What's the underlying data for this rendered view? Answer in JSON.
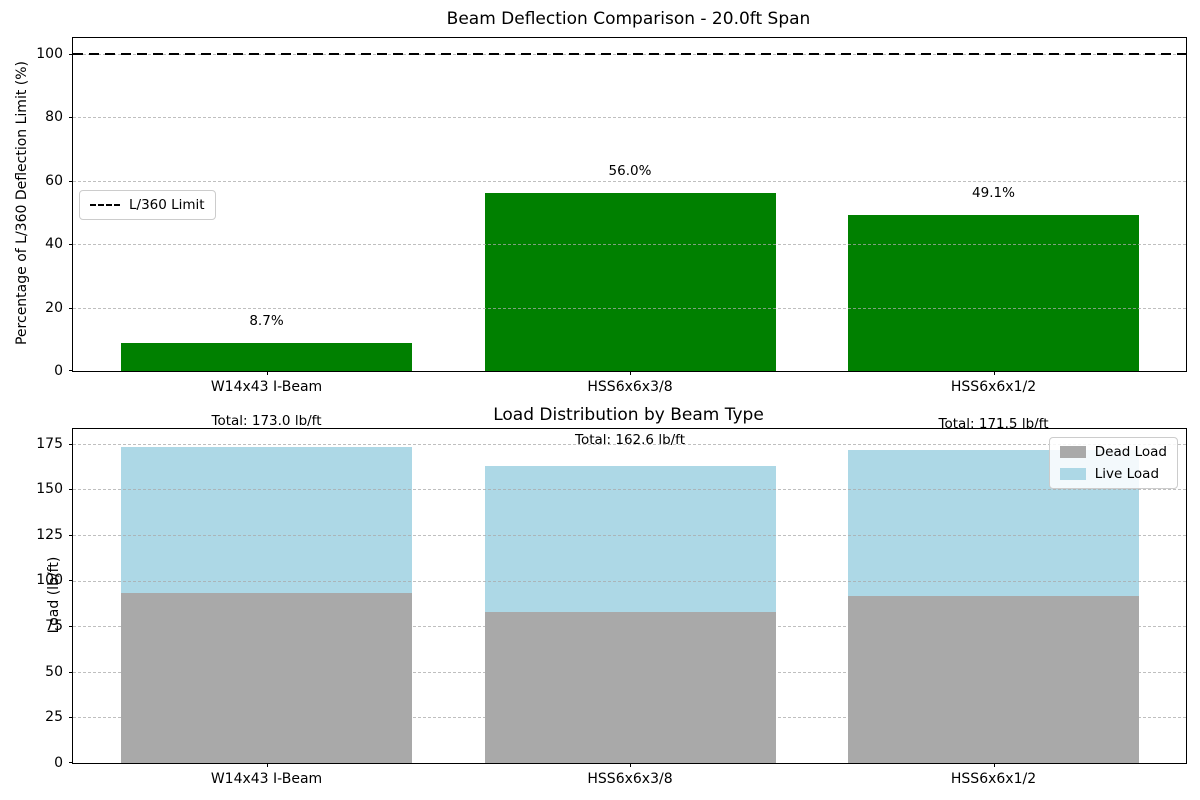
{
  "chart_data": [
    {
      "type": "bar",
      "title": "Beam Deflection Comparison - 20.0ft Span",
      "ylabel": "Percentage of L/360 Deflection Limit (%)",
      "categories": [
        "W14x43 I-Beam",
        "HSS6x6x3/8",
        "HSS6x6x1/2"
      ],
      "values": [
        8.7,
        56.0,
        49.1
      ],
      "bar_labels": [
        "8.7%",
        "56.0%",
        "49.1%"
      ],
      "bar_color": "#008000",
      "yticks": [
        0,
        20,
        40,
        60,
        80,
        100
      ],
      "ylim": [
        0,
        105
      ],
      "grid": "dashed-horizontal",
      "ref_line": {
        "value": 100,
        "color": "#000000",
        "style": "dashed"
      },
      "legend": {
        "position": "center-left",
        "entries": [
          {
            "label": "L/360 Limit",
            "marker": "dashed-line",
            "color": "#000000"
          }
        ]
      }
    },
    {
      "type": "stacked-bar",
      "title": "Load Distribution by Beam Type",
      "ylabel": "Load (lb/ft)",
      "categories": [
        "W14x43 I-Beam",
        "HSS6x6x3/8",
        "HSS6x6x1/2"
      ],
      "series": [
        {
          "name": "Dead Load",
          "color": "#a9a9a9",
          "values": [
            93.0,
            82.6,
            91.5
          ]
        },
        {
          "name": "Live Load",
          "color": "#add8e6",
          "values": [
            80.0,
            80.0,
            80.0
          ]
        }
      ],
      "totals": [
        173.0,
        162.6,
        171.5
      ],
      "total_labels": [
        "Total: 173.0 lb/ft",
        "Total: 162.6 lb/ft",
        "Total: 171.5 lb/ft"
      ],
      "yticks": [
        0,
        25,
        50,
        75,
        100,
        125,
        150,
        175
      ],
      "ylim": [
        0,
        183
      ],
      "grid": "dashed-horizontal",
      "legend": {
        "position": "top-right",
        "entries": [
          {
            "label": "Dead Load",
            "marker": "rect",
            "color": "#a9a9a9"
          },
          {
            "label": "Live Load",
            "marker": "rect",
            "color": "#add8e6"
          }
        ]
      }
    }
  ]
}
